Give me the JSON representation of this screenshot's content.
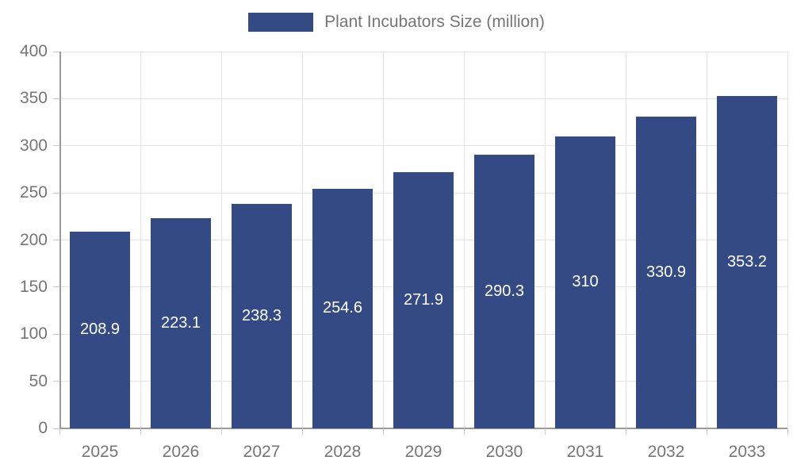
{
  "legend": {
    "label": "Plant Incubators Size (million)"
  },
  "chart_data": {
    "type": "bar",
    "title": "Plant Incubators Size (million)",
    "categories": [
      "2025",
      "2026",
      "2027",
      "2028",
      "2029",
      "2030",
      "2031",
      "2032",
      "2033"
    ],
    "values": [
      208.9,
      223.1,
      238.3,
      254.6,
      271.9,
      290.3,
      310,
      330.9,
      353.2
    ],
    "xlabel": "",
    "ylabel": "",
    "ylim": [
      0,
      400
    ],
    "yticks": [
      0,
      50,
      100,
      150,
      200,
      250,
      300,
      350,
      400
    ],
    "grid": true,
    "legend_position": "top-center",
    "value_labels": "white, centered inside bars",
    "colors": {
      "bar": "#344a85",
      "value_text": "#ffffff",
      "axis_text": "#757575",
      "gridline": "#e3e3e3",
      "axis_line": "#9a9a9a",
      "tick": "#c9c9c9"
    }
  }
}
